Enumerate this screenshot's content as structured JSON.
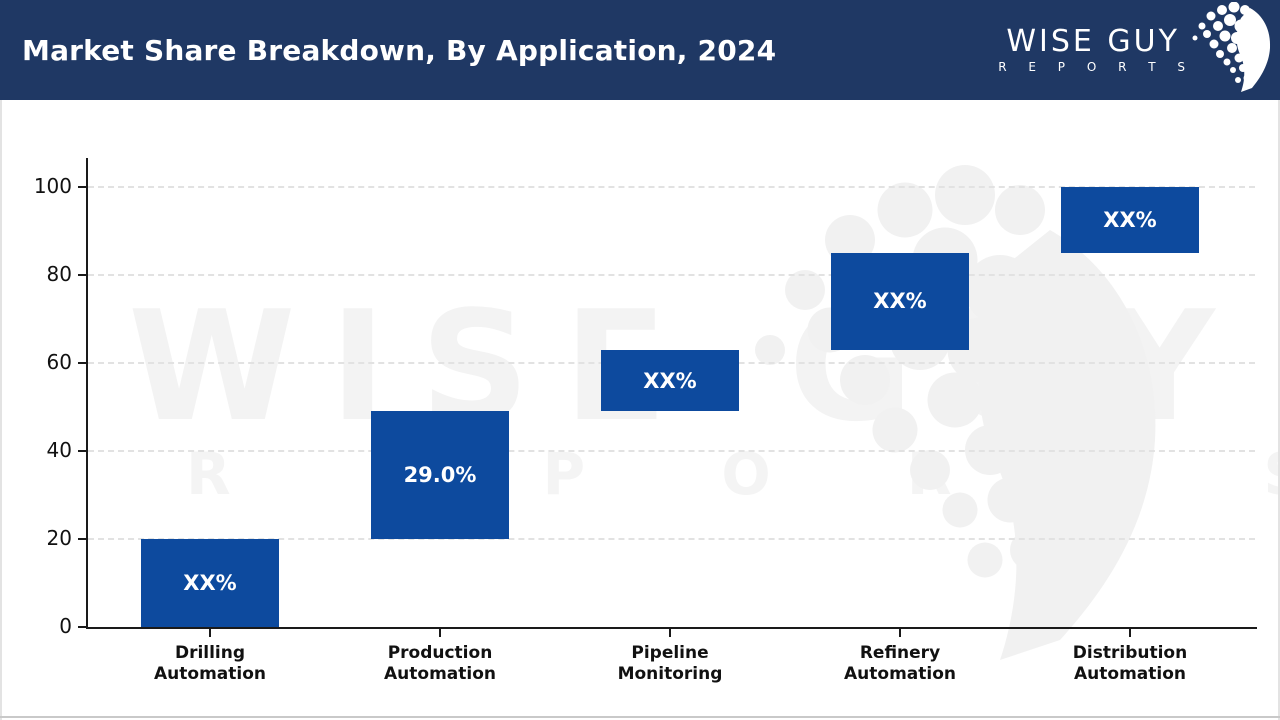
{
  "header": {
    "title": "Market Share Breakdown, By Application, 2024",
    "bg_color": "#1f3864",
    "logo": {
      "line1": "WISE GUY",
      "line2": "R E P O R T S"
    }
  },
  "watermark": {
    "line1": "WISE GUY",
    "line2": "R E P O R T S"
  },
  "chart_data": {
    "type": "bar",
    "subtype": "waterfall",
    "title": "Market Share Breakdown, By Application, 2024",
    "categories": [
      "Drilling Automation",
      "Production Automation",
      "Pipeline Monitoring",
      "Refinery Automation",
      "Distribution Automation"
    ],
    "bars": [
      {
        "category": "Drilling Automation",
        "label_lines": [
          "Drilling",
          "Automation"
        ],
        "start": 0,
        "end": 20,
        "label": "XX%"
      },
      {
        "category": "Production Automation",
        "label_lines": [
          "Production",
          "Automation"
        ],
        "start": 20,
        "end": 49,
        "label": "29.0%"
      },
      {
        "category": "Pipeline Monitoring",
        "label_lines": [
          "Pipeline",
          "Monitoring"
        ],
        "start": 49,
        "end": 63,
        "label": "XX%"
      },
      {
        "category": "Refinery Automation",
        "label_lines": [
          "Refinery",
          "Automation"
        ],
        "start": 63,
        "end": 85,
        "label": "XX%"
      },
      {
        "category": "Distribution Automation",
        "label_lines": [
          "Distribution",
          "Automation"
        ],
        "start": 85,
        "end": 100,
        "label": "XX%"
      }
    ],
    "ylim": [
      0,
      100
    ],
    "yticks": [
      0,
      20,
      40,
      60,
      80,
      100
    ],
    "grid": "horizontal-dashed",
    "legend": "none",
    "bar_color": "#0d4a9e",
    "bar_label_color": "#ffffff",
    "axis_color": "#1a1a1a",
    "gridline_color": "#e2e2e2"
  }
}
